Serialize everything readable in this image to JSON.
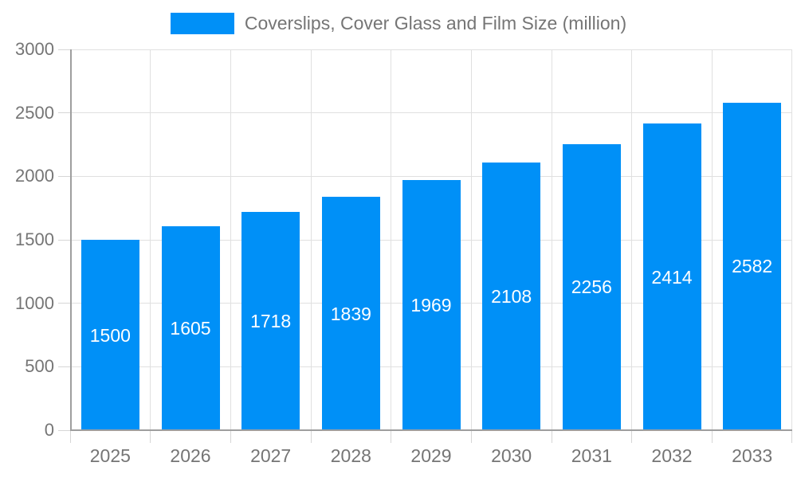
{
  "legend": {
    "label": "Coverslips, Cover Glass and Film Size (million)"
  },
  "chart_data": {
    "type": "bar",
    "title": "Coverslips, Cover Glass and Film Size (million)",
    "categories": [
      "2025",
      "2026",
      "2027",
      "2028",
      "2029",
      "2030",
      "2031",
      "2032",
      "2033"
    ],
    "values": [
      1500,
      1605,
      1718,
      1839,
      1969,
      2108,
      2256,
      2414,
      2582
    ],
    "xlabel": "",
    "ylabel": "",
    "ylim": [
      0,
      3000
    ],
    "yticks": [
      0,
      500,
      1000,
      1500,
      2000,
      2500,
      3000
    ],
    "grid": true,
    "legend_position": "top",
    "bar_labels_inside": true,
    "colors": {
      "bar": "#0090f7",
      "bar_label": "#ffffff",
      "axis_text": "#757575",
      "gridline": "#e0e0e0",
      "tick": "#d6d6d6",
      "axis_line": "#9e9e9e",
      "background": "#ffffff"
    }
  }
}
